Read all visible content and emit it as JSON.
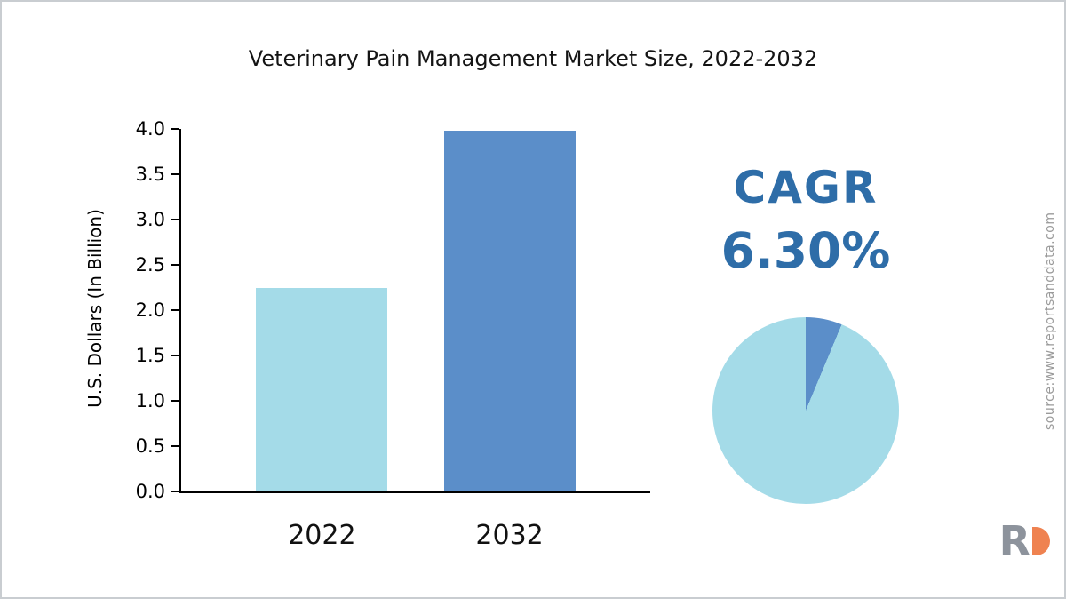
{
  "title": "Veterinary Pain Management Market Size, 2022-2032",
  "chart_data": {
    "type": "bar",
    "title": "Veterinary Pain Management Market Size, 2022-2032",
    "categories": [
      "2022",
      "2032"
    ],
    "values": [
      2.25,
      3.98
    ],
    "xlabel": "",
    "ylabel": "U.S. Dollars (In Billion)",
    "ylim": [
      0,
      4.0
    ],
    "ytick_step": 0.5,
    "ytick_labels": [
      "0.0",
      "0.5",
      "1.0",
      "1.5",
      "2.0",
      "2.5",
      "3.0",
      "3.5",
      "4.0"
    ],
    "bar_colors": [
      "#a4dbe8",
      "#5b8ec9"
    ],
    "grid": false,
    "legend": "none"
  },
  "cagr": {
    "label": "CAGR",
    "value": "6.30%",
    "percent": 6.3,
    "color": "#2e6da8"
  },
  "pie": {
    "base_color": "#a4dbe8",
    "slice_color": "#5b8ec9",
    "slice_percent": 6.3
  },
  "source_text": "source:www.reportsanddata.com",
  "logo": {
    "letter": "R",
    "letter_color": "#8d939c",
    "accent_color": "#ef8250"
  }
}
